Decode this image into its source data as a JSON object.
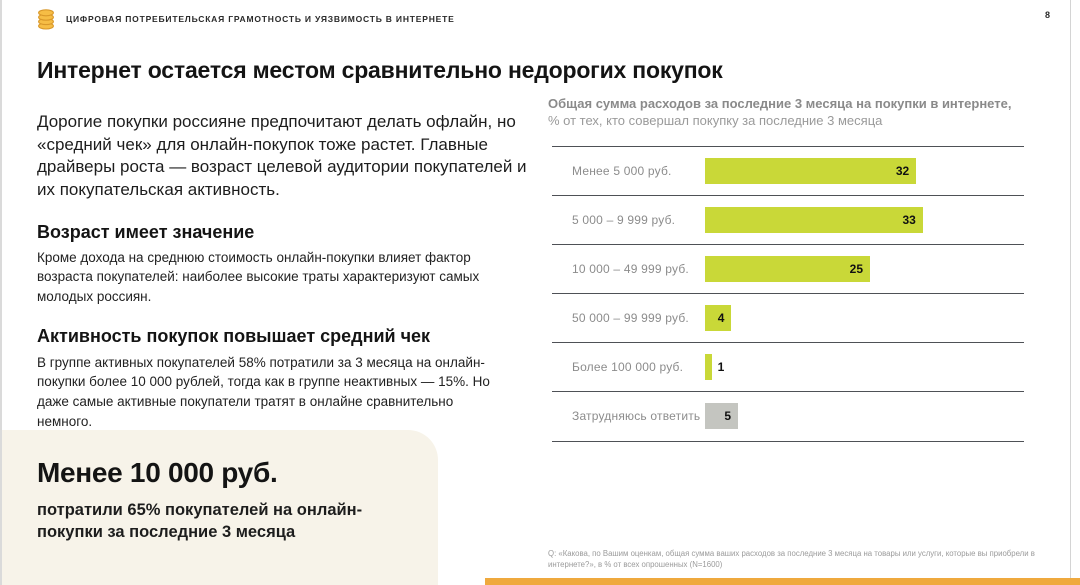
{
  "header": {
    "brand": "ЦИФРОВАЯ ПОТРЕБИТЕЛЬСКАЯ ГРАМОТНОСТЬ И УЯЗВИМОСТЬ В ИНТЕРНЕТЕ",
    "page_number": "8"
  },
  "title": "Интернет остается местом сравнительно недорогих покупок",
  "article": {
    "intro": "Дорогие покупки россияне предпочитают делать офлайн, но «средний чек» для онлайн-покупок тоже растет. Главные драйверы роста — возраст целевой аудитории покупателей и их покупательская активность.",
    "sections": [
      {
        "heading": "Возраст имеет значение",
        "body": "Кроме дохода на среднюю стоимость онлайн-покупки влияет фактор возраста покупателей: наиболее высокие траты характеризуют самых молодых россиян."
      },
      {
        "heading": "Активность покупок повышает средний чек",
        "body": "В группе активных покупателей 58% потратили за 3 месяца на онлайн-покупки более 10 000 рублей, тогда как в группе неактивных — 15%. Но даже самые активные покупатели тратят в онлайне сравнительно немного."
      }
    ]
  },
  "callout": {
    "headline": "Менее 10 000 руб.",
    "text": "потратили 65% покупателей на онлайн-покупки за последние 3 месяца"
  },
  "chart_data": {
    "type": "bar",
    "orientation": "horizontal",
    "title": "Общая сумма расходов за последние 3 месяца на покупки в интернете,",
    "subtitle": "% от тех, кто совершал покупку за последние 3 месяца",
    "unit": "%",
    "categories": [
      "Менее 5 000 руб.",
      "5 000 – 9 999 руб.",
      "10 000 – 49 999 руб.",
      "50 000 – 99 999 руб.",
      "Более 100 000 руб.",
      "Затрудняюсь ответить"
    ],
    "values": [
      32,
      33,
      25,
      4,
      1,
      5
    ],
    "xlim": [
      0,
      48
    ],
    "grid": "row-separators",
    "legend": "none",
    "bar_colors": [
      "#c9d838",
      "#c9d838",
      "#c9d838",
      "#c9d838",
      "#c9d838",
      "#c4c5c0"
    ]
  },
  "footnote": "Q: «Какова, по Вашим оценкам, общая сумма ваших расходов за последние 3 месяца на товары или услуги, которые вы приобрели в интернете?», в % от всех опрошенных (N=1600)",
  "colors": {
    "accent_lime": "#c9d838",
    "accent_gold": "#efa93e",
    "neutral_bar": "#c4c5c0",
    "callout_bg": "#f7f3e9",
    "separator": "#4e5156",
    "muted_text": "#8c8c8c"
  }
}
